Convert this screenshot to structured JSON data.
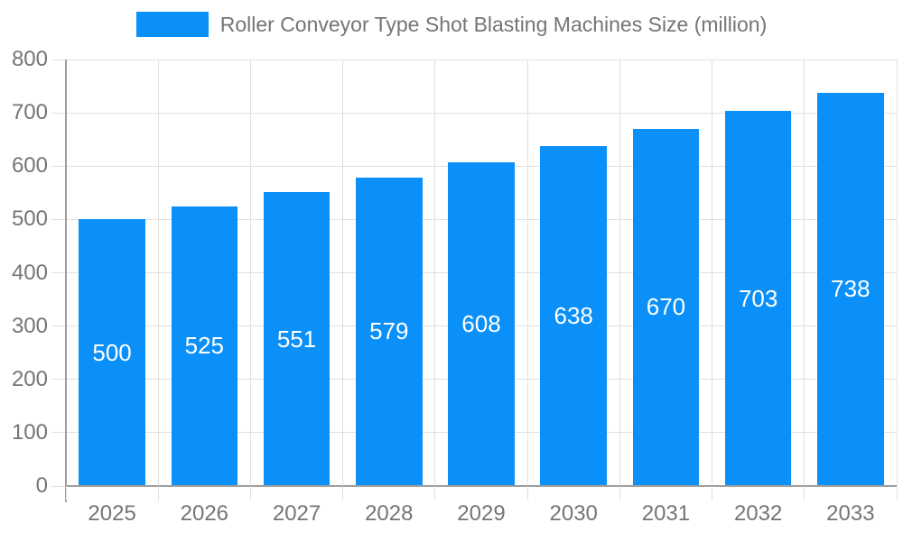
{
  "legend": {
    "label": "Roller Conveyor Type Shot Blasting Machines Size (million)"
  },
  "chart_data": {
    "type": "bar",
    "title": "Roller Conveyor Type Shot Blasting Machines Size (million)",
    "categories": [
      "2025",
      "2026",
      "2027",
      "2028",
      "2029",
      "2030",
      "2031",
      "2032",
      "2033"
    ],
    "values": [
      500,
      525,
      551,
      579,
      608,
      638,
      670,
      703,
      738
    ],
    "xlabel": "",
    "ylabel": "",
    "ylim": [
      0,
      800
    ],
    "yticks": [
      0,
      100,
      200,
      300,
      400,
      500,
      600,
      700,
      800
    ],
    "grid": true,
    "legend_position": "top",
    "value_labels_inside_bars": true,
    "colors": {
      "bar": "#0a90f8",
      "axis_label": "#757575",
      "gridline": "#e0e0e0",
      "axis_line": "#9e9e9e",
      "value_label": "#ffffff"
    }
  }
}
